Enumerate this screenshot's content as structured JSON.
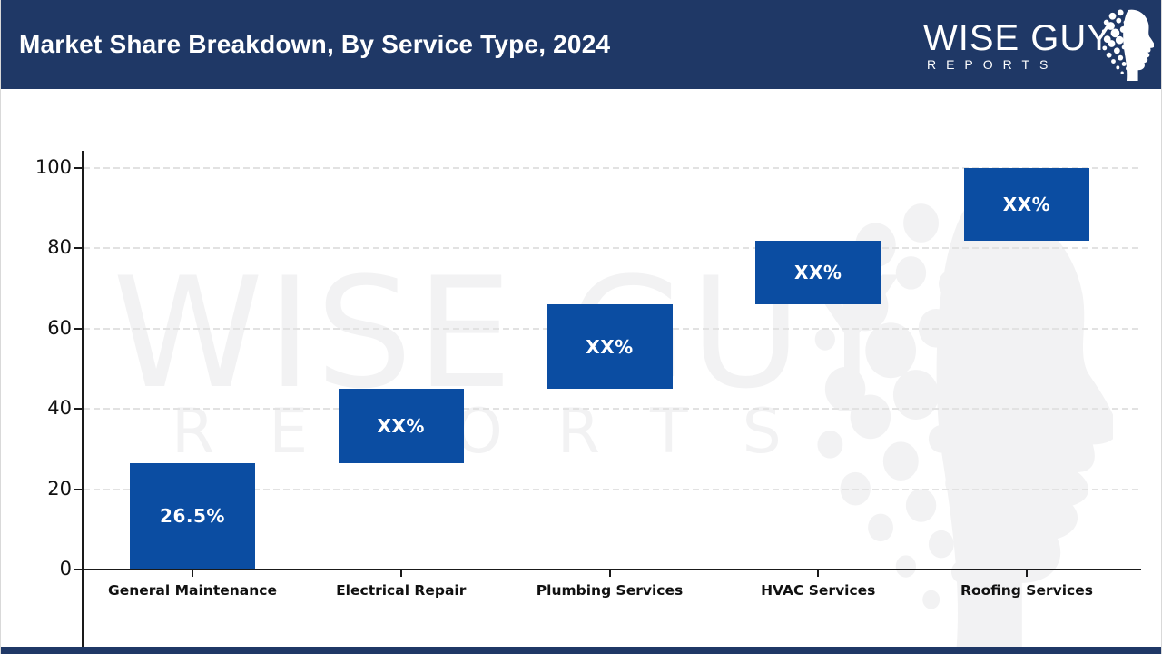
{
  "header": {
    "title": "Market Share Breakdown, By Service Type, 2024",
    "logo": {
      "line1": "WISE GUY",
      "line2": "REPORTS"
    }
  },
  "watermark": {
    "line1": "WISE GUY",
    "line2": "REPORTS"
  },
  "chart_data": {
    "type": "bar",
    "variant": "waterfall",
    "title": "Market Share Breakdown, By Service Type, 2024",
    "categories": [
      "General Maintenance",
      "Electrical Repair",
      "Plumbing Services",
      "HVAC Services",
      "Roofing Services"
    ],
    "series": [
      {
        "name": "Market share (%)",
        "segments": [
          {
            "category": "General Maintenance",
            "start": 0,
            "end": 26.5,
            "label": "26.5%"
          },
          {
            "category": "Electrical Repair",
            "start": 26.5,
            "end": 45,
            "label": "XX%"
          },
          {
            "category": "Plumbing Services",
            "start": 45,
            "end": 66,
            "label": "XX%"
          },
          {
            "category": "HVAC Services",
            "start": 66,
            "end": 82,
            "label": "XX%"
          },
          {
            "category": "Roofing Services",
            "start": 82,
            "end": 100,
            "label": "XX%"
          }
        ]
      }
    ],
    "y_ticks": [
      0,
      20,
      40,
      60,
      80,
      100
    ],
    "ylim": [
      0,
      104
    ],
    "xlabel": "",
    "ylabel": "",
    "grid": "horizontal-dashed",
    "legend": "none"
  },
  "colors": {
    "header_bg": "#1F3866",
    "footer_bg": "#1F3866",
    "bar": "#0B4DA2",
    "bar_label": "#FFFFFF",
    "grid_line": "#E2E2E2",
    "axis": "#1A1A1A",
    "watermark": "#F2F2F3",
    "title_text": "#FFFFFF"
  }
}
